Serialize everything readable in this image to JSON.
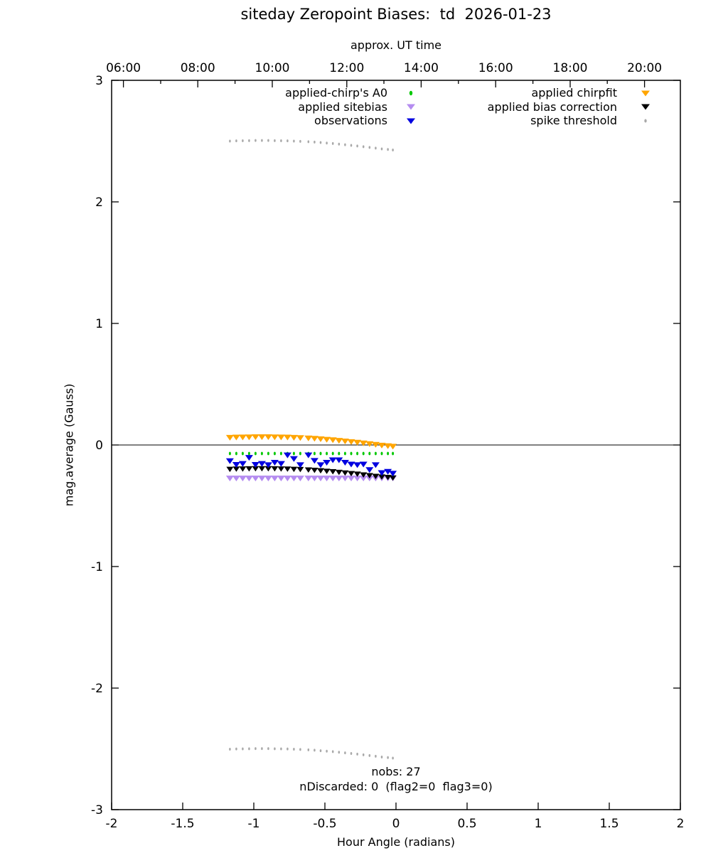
{
  "chart_data": {
    "type": "scatter",
    "title": "siteday Zeropoint Biases:  td  2026-01-23",
    "x2label": "approx. UT time",
    "xlabel": "Hour Angle (radians)",
    "ylabel": "mag.average (Gauss)",
    "xlim": [
      -2,
      2
    ],
    "ylim": [
      -3,
      3
    ],
    "grid": false,
    "zero_line": true,
    "x_ticks": [
      {
        "v": -2,
        "l": "-2"
      },
      {
        "v": -1.5,
        "l": "-1.5"
      },
      {
        "v": -1,
        "l": "-1"
      },
      {
        "v": -0.5,
        "l": "-0.5"
      },
      {
        "v": 0,
        "l": "0"
      },
      {
        "v": 0.5,
        "l": "0.5"
      },
      {
        "v": 1,
        "l": "1"
      },
      {
        "v": 1.5,
        "l": "1.5"
      },
      {
        "v": 2,
        "l": "2"
      }
    ],
    "y_ticks": [
      {
        "v": 3,
        "l": "3"
      },
      {
        "v": 2,
        "l": "2"
      },
      {
        "v": 1,
        "l": "1"
      },
      {
        "v": 0,
        "l": "0"
      },
      {
        "v": -1,
        "l": "-1"
      },
      {
        "v": -2,
        "l": "-2"
      },
      {
        "v": -3,
        "l": "-3"
      }
    ],
    "x2_major_ticks": [
      {
        "v": -1.917,
        "l": "06:00"
      },
      {
        "v": -1.394,
        "l": "08:00"
      },
      {
        "v": -0.87,
        "l": "10:00"
      },
      {
        "v": -0.346,
        "l": "12:00"
      },
      {
        "v": 0.177,
        "l": "14:00"
      },
      {
        "v": 0.701,
        "l": "16:00"
      },
      {
        "v": 1.225,
        "l": "18:00"
      },
      {
        "v": 1.748,
        "l": "20:00"
      }
    ],
    "x2_minor_ticks": [
      -1.655,
      -1.132,
      -0.608,
      -0.085,
      0.439,
      0.963,
      1.486
    ],
    "x": [
      -1.168,
      -1.123,
      -1.078,
      -1.033,
      -0.988,
      -0.943,
      -0.898,
      -0.853,
      -0.808,
      -0.763,
      -0.718,
      -0.673,
      -0.616,
      -0.573,
      -0.53,
      -0.487,
      -0.444,
      -0.401,
      -0.358,
      -0.315,
      -0.272,
      -0.229,
      -0.186,
      -0.143,
      -0.1,
      -0.057,
      -0.022
    ],
    "series": [
      {
        "id": "a0",
        "name": "applied-chirp's A0",
        "color": "#00c800",
        "marker": "dot",
        "rx": 1.5,
        "ry": 2.4,
        "values": [
          -0.07,
          -0.07,
          -0.07,
          -0.07,
          -0.07,
          -0.07,
          -0.07,
          -0.07,
          -0.07,
          -0.07,
          -0.07,
          -0.07,
          -0.07,
          -0.07,
          -0.07,
          -0.07,
          -0.07,
          -0.07,
          -0.07,
          -0.07,
          -0.07,
          -0.07,
          -0.07,
          -0.07,
          -0.07,
          -0.07,
          -0.07
        ]
      },
      {
        "id": "chirpfit",
        "name": "applied chirpfit",
        "color": "#ffa500",
        "marker": "triangle",
        "mw": 11,
        "mh": 8,
        "values": [
          0.065,
          0.067,
          0.068,
          0.069,
          0.07,
          0.07,
          0.07,
          0.069,
          0.068,
          0.067,
          0.065,
          0.063,
          0.06,
          0.057,
          0.053,
          0.049,
          0.045,
          0.04,
          0.035,
          0.03,
          0.025,
          0.019,
          0.013,
          0.007,
          0.001,
          -0.004,
          -0.008
        ]
      },
      {
        "id": "sitebias",
        "name": "applied sitebias",
        "color": "#b58cf0",
        "marker": "triangle",
        "mw": 11,
        "mh": 8,
        "values": [
          -0.27,
          -0.27,
          -0.27,
          -0.27,
          -0.27,
          -0.27,
          -0.27,
          -0.27,
          -0.27,
          -0.27,
          -0.27,
          -0.27,
          -0.27,
          -0.27,
          -0.27,
          -0.27,
          -0.27,
          -0.27,
          -0.27,
          -0.27,
          -0.27,
          -0.27,
          -0.27,
          -0.27,
          -0.27,
          -0.27,
          -0.27
        ]
      },
      {
        "id": "biascorr",
        "name": "applied bias correction",
        "color": "#000000",
        "marker": "triangle",
        "mw": 10,
        "mh": 7.5,
        "values": [
          -0.195,
          -0.193,
          -0.192,
          -0.191,
          -0.19,
          -0.19,
          -0.19,
          -0.191,
          -0.192,
          -0.193,
          -0.195,
          -0.197,
          -0.2,
          -0.203,
          -0.207,
          -0.211,
          -0.215,
          -0.22,
          -0.225,
          -0.23,
          -0.235,
          -0.241,
          -0.247,
          -0.253,
          -0.258,
          -0.262,
          -0.266
        ]
      },
      {
        "id": "obs",
        "name": "observations",
        "color": "#0000e0",
        "marker": "triangle",
        "mw": 11,
        "mh": 8,
        "values": [
          -0.127,
          -0.158,
          -0.15,
          -0.1,
          -0.158,
          -0.15,
          -0.16,
          -0.14,
          -0.15,
          -0.08,
          -0.11,
          -0.16,
          -0.08,
          -0.125,
          -0.16,
          -0.14,
          -0.12,
          -0.12,
          -0.14,
          -0.155,
          -0.16,
          -0.155,
          -0.2,
          -0.16,
          -0.225,
          -0.215,
          -0.23
        ]
      },
      {
        "id": "spike",
        "name": "spike threshold",
        "color": "#a9a9a9",
        "marker": "dot",
        "rx": 1.3,
        "ry": 2.0,
        "upper": [
          2.5,
          2.502,
          2.503,
          2.504,
          2.505,
          2.505,
          2.505,
          2.504,
          2.503,
          2.502,
          2.5,
          2.498,
          2.495,
          2.492,
          2.488,
          2.484,
          2.48,
          2.475,
          2.47,
          2.465,
          2.46,
          2.454,
          2.448,
          2.442,
          2.436,
          2.431,
          2.427
        ],
        "lower": [
          -2.503,
          -2.501,
          -2.5,
          -2.499,
          -2.498,
          -2.498,
          -2.498,
          -2.499,
          -2.5,
          -2.501,
          -2.503,
          -2.505,
          -2.508,
          -2.511,
          -2.515,
          -2.519,
          -2.523,
          -2.528,
          -2.533,
          -2.538,
          -2.543,
          -2.549,
          -2.555,
          -2.561,
          -2.567,
          -2.572,
          -2.576
        ]
      }
    ],
    "legend": {
      "left": [
        {
          "label": "applied-chirp's A0",
          "color": "#00c800",
          "shape": "dot"
        },
        {
          "label": "applied sitebias",
          "color": "#b58cf0",
          "shape": "triangle"
        },
        {
          "label": "observations",
          "color": "#0000e0",
          "shape": "triangle"
        }
      ],
      "right": [
        {
          "label": "applied chirpfit",
          "color": "#ffa500",
          "shape": "triangle"
        },
        {
          "label": "applied bias correction",
          "color": "#000000",
          "shape": "triangle"
        },
        {
          "label": "spike threshold",
          "color": "#a9a9a9",
          "shape": "smalldot"
        }
      ]
    },
    "annotations": {
      "nobs": "nobs: 27",
      "ndiscarded": "nDiscarded: 0  (flag2=0  flag3=0)"
    }
  }
}
